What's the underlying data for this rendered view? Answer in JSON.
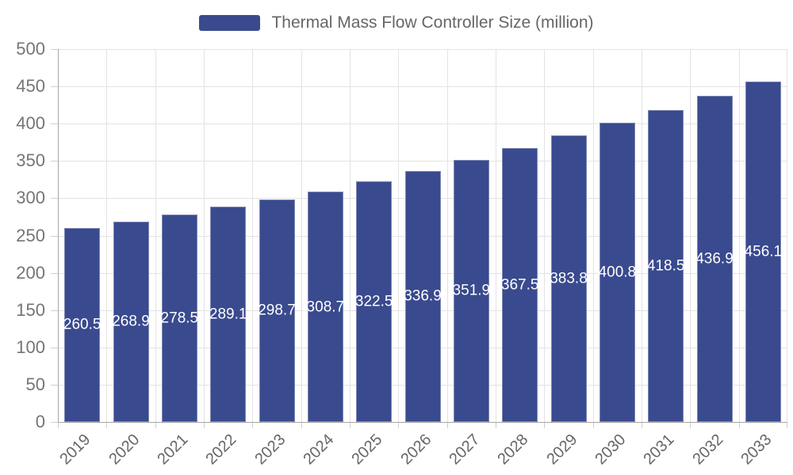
{
  "legend": {
    "label": "Thermal Mass Flow Controller Size (million)"
  },
  "colors": {
    "bar": "#3A4A8E",
    "grid": "#E3E3E3",
    "axis": "#A6A6A6",
    "tick": "#CFCFCF",
    "text": "#666666",
    "ytick_text": "#757575",
    "value_label": "#FFFFFF"
  },
  "chart_data": {
    "type": "bar",
    "title": "Thermal Mass Flow Controller Size (million)",
    "series_name": "Thermal Mass Flow Controller Size (million)",
    "categories": [
      "2019",
      "2020",
      "2021",
      "2022",
      "2023",
      "2024",
      "2025",
      "2026",
      "2027",
      "2028",
      "2029",
      "2030",
      "2031",
      "2032",
      "2033"
    ],
    "values": [
      260.5,
      268.9,
      278.5,
      289.1,
      298.7,
      308.7,
      322.5,
      336.9,
      351.9,
      367.5,
      383.8,
      400.8,
      418.5,
      436.9,
      456.1
    ],
    "xlabel": "",
    "ylabel": "",
    "ylim": [
      0,
      500
    ],
    "ytick_interval": 50,
    "grid": true,
    "legend_position": "top",
    "value_label_position": "center",
    "x_label_rotation": -45
  }
}
